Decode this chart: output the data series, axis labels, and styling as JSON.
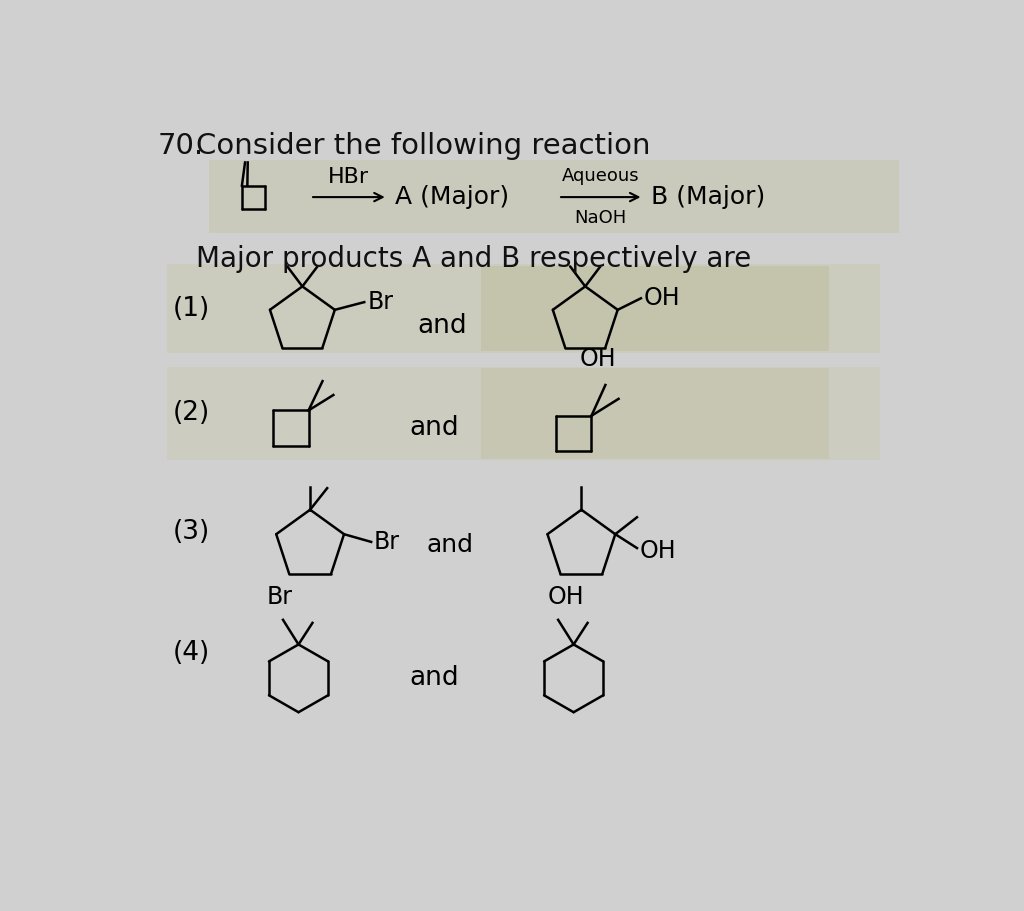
{
  "title_number": "70.",
  "title_text": "Consider the following reaction",
  "subtitle": "Major products A and B respectively are",
  "bg_color": "#d0d0d0",
  "paper_color": "#d8d8d8",
  "highlight_color": "#c8c8b0",
  "text_color": "#111111",
  "fs_title": 21,
  "fs_sub": 20,
  "fs_opt": 19,
  "fs_chem": 17,
  "fs_arrow": 14
}
